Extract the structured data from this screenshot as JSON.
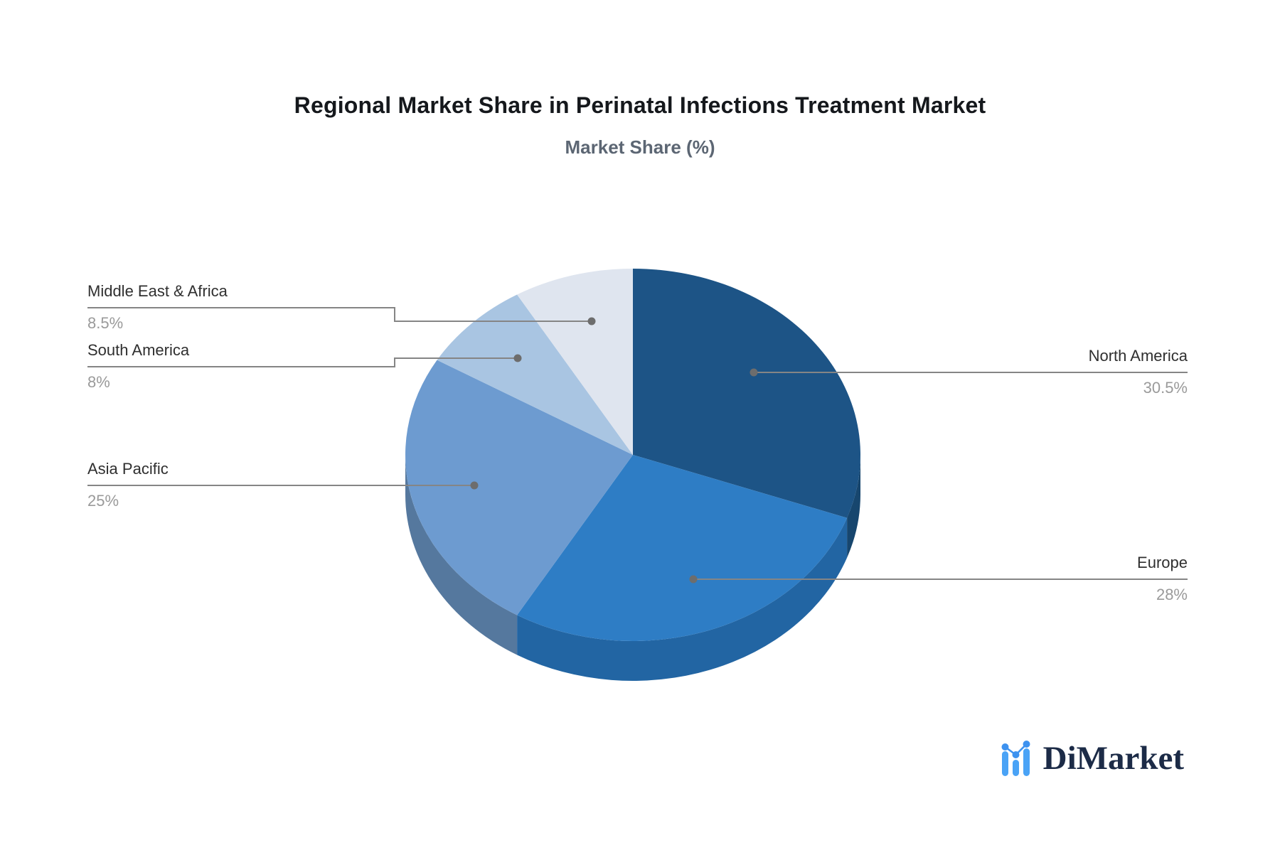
{
  "chart_data": {
    "type": "pie",
    "style_3d": true,
    "title": "Regional Market Share in Perinatal Infections Treatment Market",
    "subtitle": "Market Share (%)",
    "unit": "%",
    "legend_position": "callout-labels",
    "categories": [
      "North America",
      "Europe",
      "Asia Pacific",
      "South America",
      "Middle East & Africa"
    ],
    "values": [
      30.5,
      28,
      25,
      8,
      8.5
    ],
    "points": [
      {
        "label": "North America",
        "value": 30.5,
        "display": "30.5%",
        "color": "#1d5486",
        "side_color": "#17466e"
      },
      {
        "label": "Europe",
        "value": 28,
        "display": "28%",
        "color": "#2e7dc5",
        "side_color": "#2265a3"
      },
      {
        "label": "Asia Pacific",
        "value": 25,
        "display": "25%",
        "color": "#6d9bd0",
        "side_color": "#55789e"
      },
      {
        "label": "South America",
        "value": 8,
        "display": "8%",
        "color": "#a9c5e2",
        "side_color": "#8aa9c8"
      },
      {
        "label": "Middle East & Africa",
        "value": 8.5,
        "display": "8.5%",
        "color": "#dfe5ef",
        "side_color": "#bac5d7"
      }
    ]
  },
  "branding": {
    "logo_text": "DiMarket"
  },
  "style": {
    "line_color": "#858585",
    "dot_color": "#6d6d6d",
    "label_color": "#2f2f2f",
    "value_color": "#9a9a9a",
    "title_color": "#15181c",
    "subtitle_color": "#5c6673",
    "logo_text_color": "#1c2b47",
    "logo_icon_color": "#4aa3f6"
  }
}
